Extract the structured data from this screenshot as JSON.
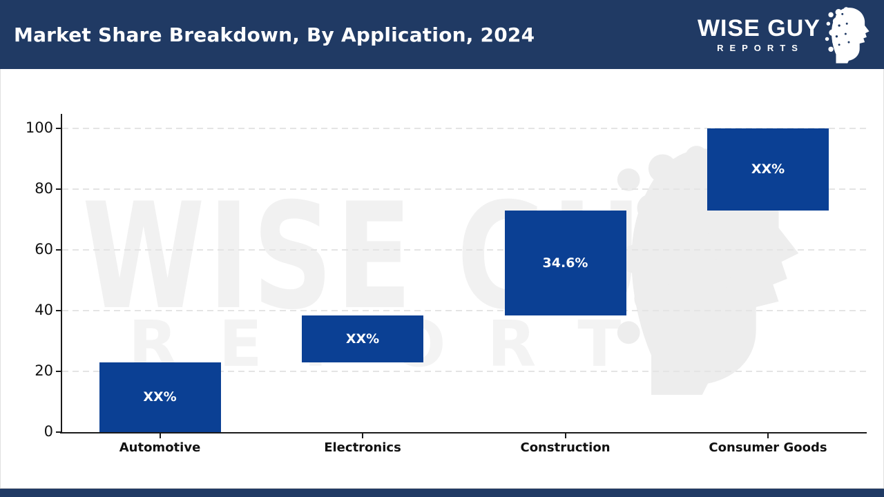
{
  "header": {
    "title": "Market Share Breakdown, By Application, 2024",
    "bg_color": "#203a64",
    "logo": {
      "line1": "WISE GUY",
      "line2": "REPORTS"
    }
  },
  "watermark": {
    "line1": "WISE GUY",
    "line2": "R E P O R T S"
  },
  "chart_data": {
    "type": "bar",
    "subtype": "waterfall",
    "title": "Market Share Breakdown, By Application, 2024",
    "categories": [
      "Automotive",
      "Electronics",
      "Construction",
      "Consumer Goods"
    ],
    "segments": [
      {
        "category": "Automotive",
        "start": 0,
        "end": 23,
        "value": 23,
        "label": "XX%"
      },
      {
        "category": "Electronics",
        "start": 23,
        "end": 38.4,
        "value": 15.4,
        "label": "XX%"
      },
      {
        "category": "Construction",
        "start": 38.4,
        "end": 73,
        "value": 34.6,
        "label": "34.6%"
      },
      {
        "category": "Consumer Goods",
        "start": 73,
        "end": 100,
        "value": 27,
        "label": "XX%"
      }
    ],
    "y_ticks": [
      0,
      20,
      40,
      60,
      80,
      100
    ],
    "ylim": [
      0,
      105
    ],
    "xlabel": "",
    "ylabel": "",
    "bar_color": "#0b4094",
    "grid": "horizontal-dashed",
    "legend_position": "none"
  },
  "footer": {
    "bg_color": "#203a64"
  }
}
